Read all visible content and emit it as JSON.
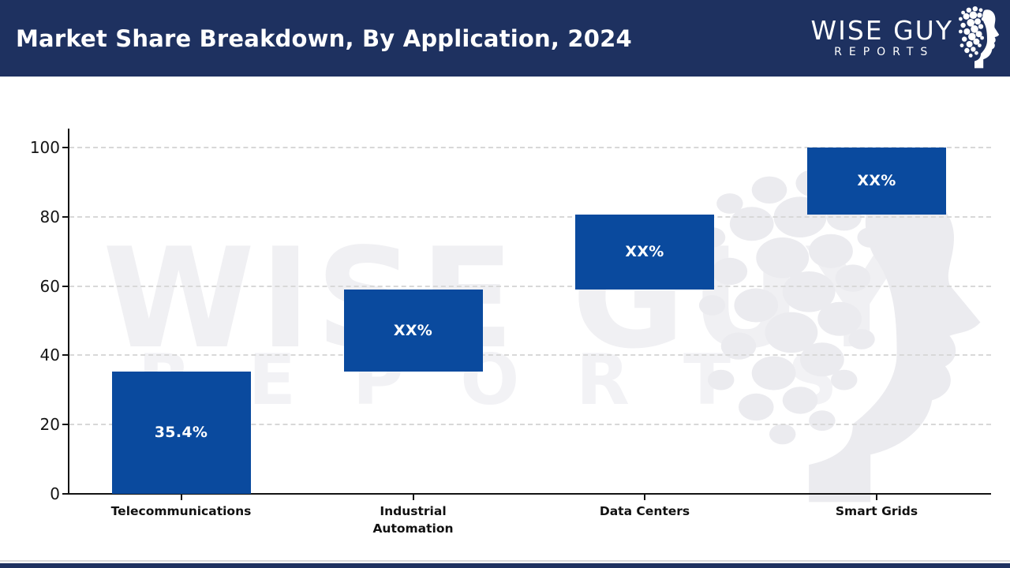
{
  "header": {
    "title": "Market Share Breakdown, By Application, 2024",
    "bg_color": "#1e3160",
    "logo": {
      "name": "WISE GUY",
      "subname": "REPORTS"
    }
  },
  "watermark": {
    "line1": "WISE GUY",
    "line2": "REPORTS"
  },
  "chart_data": {
    "type": "bar",
    "subtype": "waterfall",
    "title": "Market Share Breakdown, By Application, 2024",
    "categories": [
      "Telecommunications",
      "Industrial\nAutomation",
      "Data Centers",
      "Smart Grids"
    ],
    "segments": [
      {
        "category": "Telecommunications",
        "start": 0,
        "end": 35.4,
        "label": "35.4%"
      },
      {
        "category": "Industrial Automation",
        "start": 35.4,
        "end": 59.1,
        "label": "XX%"
      },
      {
        "category": "Data Centers",
        "start": 59.1,
        "end": 80.7,
        "label": "XX%"
      },
      {
        "category": "Smart Grids",
        "start": 80.7,
        "end": 100,
        "label": "XX%"
      }
    ],
    "y_ticks": [
      0,
      20,
      40,
      60,
      80,
      100
    ],
    "ylim": [
      0,
      105
    ],
    "xlabel": "",
    "ylabel": "",
    "grid": "horizontal-dashed",
    "legend": "none",
    "bar_color": "#0a4a9e",
    "bar_label_color": "#ffffff",
    "axis_color": "#141414"
  }
}
